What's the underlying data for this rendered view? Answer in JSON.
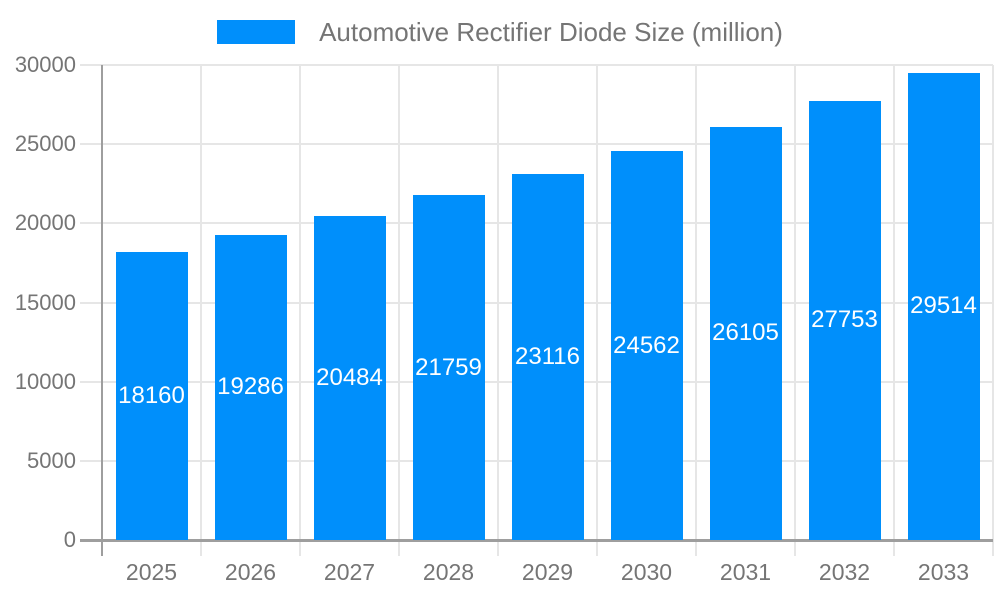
{
  "chart_data": {
    "type": "bar",
    "title": "Automotive Rectifier Diode Size (million)",
    "categories": [
      "2025",
      "2026",
      "2027",
      "2028",
      "2029",
      "2030",
      "2031",
      "2032",
      "2033"
    ],
    "values": [
      18160,
      19286,
      20484,
      21759,
      23116,
      24562,
      26105,
      27753,
      29514
    ],
    "series": [
      {
        "name": "Automotive Rectifier Diode Size (million)",
        "values": [
          18160,
          19286,
          20484,
          21759,
          23116,
          24562,
          26105,
          27753,
          29514
        ]
      }
    ],
    "xlabel": "",
    "ylabel": "",
    "ylim": [
      0,
      30000
    ],
    "ytick_step": 5000,
    "ytick_labels": [
      "0",
      "5000",
      "10000",
      "15000",
      "20000",
      "25000",
      "30000"
    ],
    "grid": "on",
    "legend_position": "top",
    "value_labels": "inside-center",
    "colors": {
      "bar": "#008FFB",
      "bar_label_text": "#ffffff",
      "axis_text": "#757575",
      "legend_text": "#757575",
      "gridline": "#e6e6e6",
      "axis_line": "#9e9e9e",
      "background": "#ffffff"
    }
  }
}
